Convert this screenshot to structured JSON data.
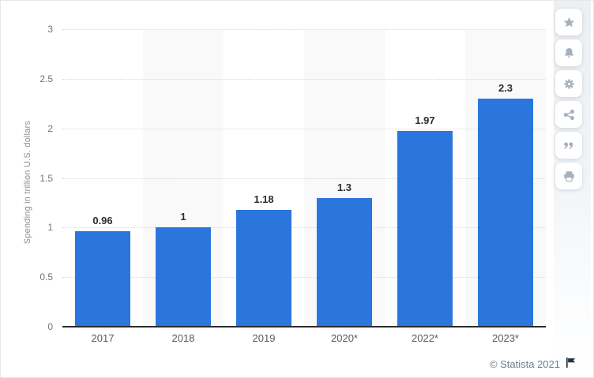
{
  "chart_data": {
    "type": "bar",
    "categories": [
      "2017",
      "2018",
      "2019",
      "2020*",
      "2022*",
      "2023*"
    ],
    "values": [
      0.96,
      1,
      1.18,
      1.3,
      1.97,
      2.3
    ],
    "value_labels": [
      "0.96",
      "1",
      "1.18",
      "1.3",
      "1.97",
      "2.3"
    ],
    "title": "",
    "xlabel": "",
    "ylabel": "Spending in trillion U.S. dollars",
    "ylim": [
      0,
      3
    ],
    "yticks": [
      0,
      0.5,
      1,
      1.5,
      2,
      2.5,
      3
    ],
    "ytick_labels": [
      "0",
      "0.5",
      "1",
      "1.5",
      "2",
      "2.5",
      "3"
    ],
    "grid": "horizontal-dotted",
    "legend": "none",
    "colors": {
      "bar": "#2a76dd",
      "alt_column_band": "#f9f9f9",
      "axis_line": "#2b2b2b",
      "grid_line": "#d8d8d8",
      "tick_text": "#757575",
      "value_label_text": "#2d2d2d"
    }
  },
  "toolbar": {
    "buttons": [
      {
        "name": "favorite",
        "icon": "star-icon"
      },
      {
        "name": "notifications",
        "icon": "bell-icon"
      },
      {
        "name": "settings",
        "icon": "gear-icon"
      },
      {
        "name": "share",
        "icon": "share-icon"
      },
      {
        "name": "cite",
        "icon": "quote-icon"
      },
      {
        "name": "print",
        "icon": "printer-icon"
      }
    ],
    "icon_color": "#a7b1bc"
  },
  "footer": {
    "copyright": "© Statista 2021",
    "flag_icon": "flag-icon",
    "flag_color": "#223140"
  }
}
